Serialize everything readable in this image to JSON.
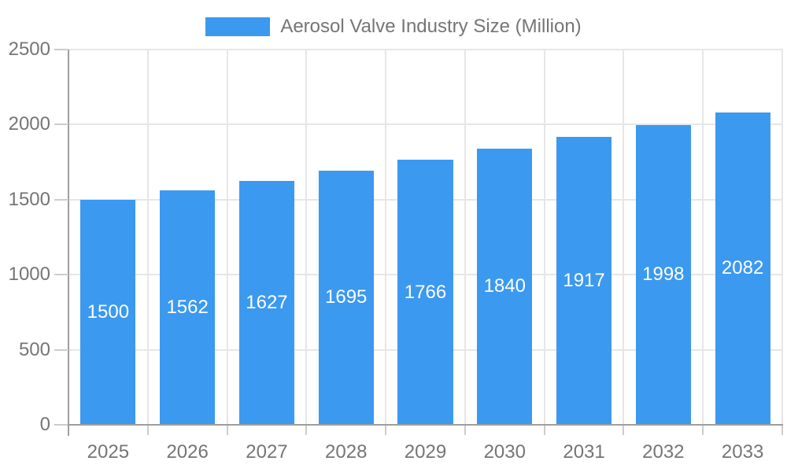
{
  "legend": {
    "label": "Aerosol Valve Industry Size (Million)"
  },
  "colors": {
    "background": "#FFFFFF",
    "bar": "#3B99F0",
    "bar_label": "#FFFFFF",
    "legend_text": "#757575",
    "tick_label": "#757575",
    "axis_line": "#9E9E9E",
    "gridline": "#E6E6E6",
    "tick_mark": "#CCCCCC"
  },
  "chart_data": {
    "type": "bar",
    "title": "",
    "xlabel": "",
    "ylabel": "",
    "legend_position": "top-center",
    "grid": true,
    "categories": [
      "2025",
      "2026",
      "2027",
      "2028",
      "2029",
      "2030",
      "2031",
      "2032",
      "2033"
    ],
    "series": [
      {
        "name": "Aerosol Valve Industry Size (Million)",
        "values": [
          1500,
          1562,
          1627,
          1695,
          1766,
          1840,
          1917,
          1998,
          2082
        ]
      }
    ],
    "ylim": [
      0,
      2500
    ],
    "yticks": [
      0,
      500,
      1000,
      1500,
      2000,
      2500
    ],
    "bar_value_labels": "inside-center"
  }
}
